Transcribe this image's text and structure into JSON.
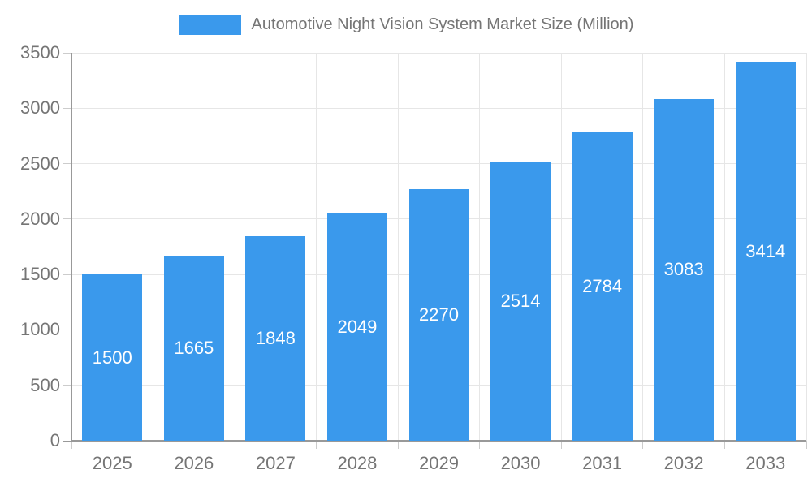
{
  "chart_data": {
    "type": "bar",
    "title": "Automotive Night Vision System Market Size (Million)",
    "categories": [
      "2025",
      "2026",
      "2027",
      "2028",
      "2029",
      "2030",
      "2031",
      "2032",
      "2033"
    ],
    "values": [
      1500,
      1665,
      1848,
      2049,
      2270,
      2514,
      2784,
      3083,
      3414
    ],
    "xlabel": "",
    "ylabel": "",
    "ylim": [
      0,
      3500
    ],
    "yticks": [
      0,
      500,
      1000,
      1500,
      2000,
      2500,
      3000,
      3500
    ],
    "grid": true,
    "legend_position": "top",
    "colors": {
      "bar": "#3A99EC",
      "bar_label": "#ffffff",
      "axis_text": "#757575",
      "legend_text": "#757575",
      "gridline": "#e6e6e6",
      "axis_line": "#999999",
      "tick": "#cccccc",
      "background": "#ffffff"
    }
  }
}
